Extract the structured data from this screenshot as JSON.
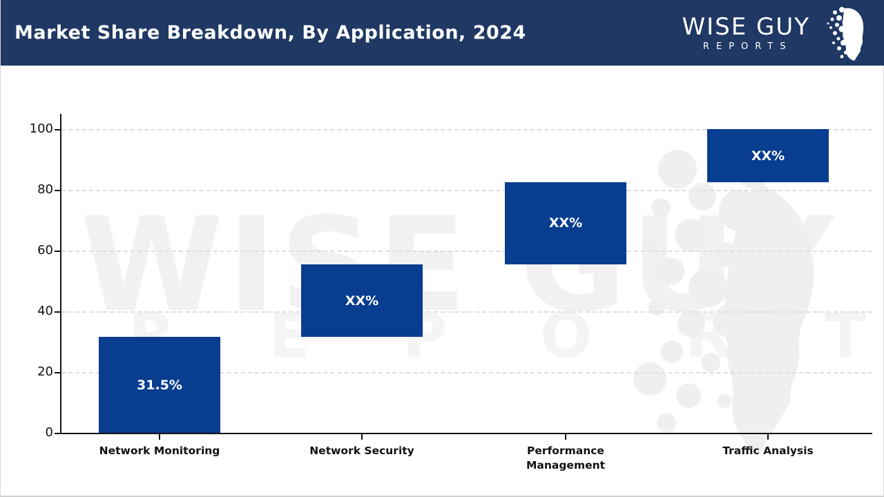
{
  "header": {
    "title": "Market Share Breakdown, By Application, 2024",
    "logo": {
      "line1": "WISE GUY",
      "line2": "REPORTS"
    }
  },
  "watermark": {
    "line1": "WISE GUY",
    "line2": "R E P O R T S"
  },
  "colors": {
    "header_bg": "#1f3864",
    "bar": "#083d8f",
    "grid": "#dcdcdc",
    "axis": "#111111",
    "bar_label": "#ffffff",
    "watermark": "#f1f1f1"
  },
  "chart_data": {
    "type": "bar",
    "subtype": "waterfall",
    "title": "Market Share Breakdown, By Application, 2024",
    "xlabel": "",
    "ylabel": "",
    "categories": [
      "Network Monitoring",
      "Network Security",
      "Performance Management",
      "Traffic Analysis"
    ],
    "bars": [
      {
        "category": "Network Monitoring",
        "start": 0,
        "end": 31.5,
        "label": "31.5%"
      },
      {
        "category": "Network Security",
        "start": 31.5,
        "end": 55.5,
        "label": "XX%"
      },
      {
        "category": "Performance Management",
        "start": 55.5,
        "end": 82.5,
        "label": "XX%"
      },
      {
        "category": "Traffic Analysis",
        "start": 82.5,
        "end": 100,
        "label": "XX%"
      }
    ],
    "yticks": [
      0,
      20,
      40,
      60,
      80,
      100
    ],
    "ylim": [
      0,
      105
    ],
    "grid": "horizontal-dashed",
    "legend": "none",
    "masked_values_note": "XX%"
  }
}
